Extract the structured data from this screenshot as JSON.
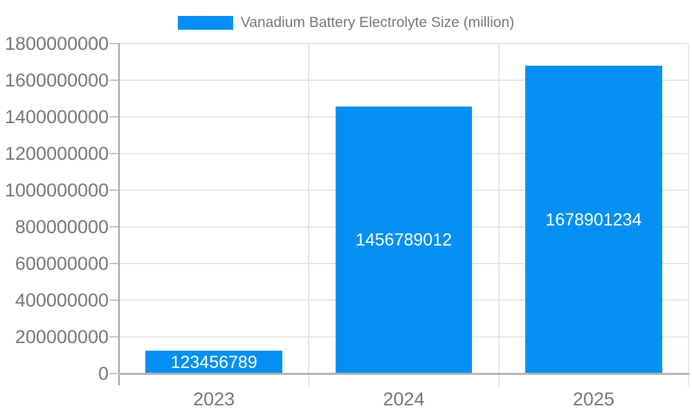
{
  "legend": {
    "label": "Vanadium Battery Electrolyte Size (million)"
  },
  "colors": {
    "bar": "#0490F2",
    "bar_label_text": "#ffffff",
    "legend_text": "#757575",
    "axis_text": "#757575",
    "gridline": "#e6e6e6",
    "vertical_separator": "#e6e6e6",
    "x_axis_line": "#b3b3b3",
    "y_axis_line": "#9e9e9e",
    "y_tick": "#c4c4c4",
    "background": "#ffffff"
  },
  "chart_data": {
    "type": "bar",
    "title": "Vanadium Battery Electrolyte Size (million)",
    "categories": [
      "2023",
      "2024",
      "2025"
    ],
    "values": [
      123456789,
      1456789012,
      1678901234
    ],
    "bar_labels": [
      "123456789",
      "1456789012",
      "1678901234"
    ],
    "xlabel": "",
    "ylabel": "",
    "ylim": [
      0,
      1800000000
    ],
    "ytick_interval": 200000000,
    "ytick_labels": [
      "0",
      "200000000",
      "400000000",
      "600000000",
      "800000000",
      "1000000000",
      "1200000000",
      "1400000000",
      "1600000000",
      "1800000000"
    ],
    "grid": true,
    "legend_position": "top",
    "bar_label_position": "center-inside"
  }
}
